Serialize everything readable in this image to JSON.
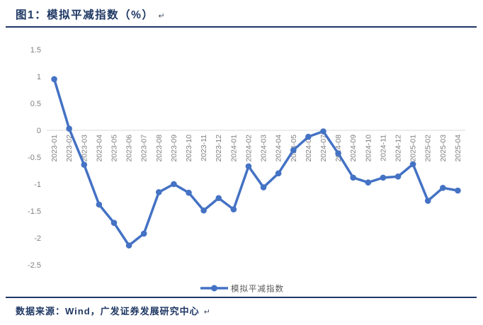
{
  "title": {
    "text": "图1：模拟平减指数（%）",
    "paragraph_mark": "↵"
  },
  "source": {
    "text": "数据来源：Wind，广发证券发展研究中心",
    "paragraph_mark": "↵"
  },
  "colors": {
    "accent_navy": "#1f3864",
    "series_blue": "#4472c4",
    "axis_text": "#7f7f7f",
    "legend_text": "#595959",
    "zero_gridline": "#d9d9d9",
    "background": "#ffffff"
  },
  "chart_data": {
    "type": "line",
    "title": "模拟平减指数（%）",
    "xlabel": "",
    "ylabel": "",
    "categories": [
      "2023-01",
      "2023-02",
      "2023-03",
      "2023-04",
      "2023-05",
      "2023-06",
      "2023-07",
      "2023-08",
      "2023-09",
      "2023-10",
      "2023-11",
      "2023-12",
      "2024-01",
      "2024-02",
      "2024-03",
      "2024-04",
      "2024-05",
      "2024-06",
      "2024-07",
      "2024-08",
      "2024-09",
      "2024-10",
      "2024-11",
      "2024-12",
      "2025-01",
      "2025-02",
      "2025-03",
      "2025-04"
    ],
    "series": [
      {
        "name": "模拟平减指数",
        "values": [
          0.95,
          0.03,
          -0.64,
          -1.38,
          -1.72,
          -2.14,
          -1.92,
          -1.15,
          -1.0,
          -1.16,
          -1.49,
          -1.26,
          -1.47,
          -0.67,
          -1.06,
          -0.8,
          -0.37,
          -0.12,
          -0.02,
          -0.43,
          -0.88,
          -0.97,
          -0.88,
          -0.86,
          -0.63,
          -1.31,
          -1.07,
          -1.12
        ]
      }
    ],
    "ylim": [
      -2.5,
      1.5
    ],
    "y_ticks": [
      "1.5",
      "1",
      "0.5",
      "0",
      "-0.5",
      "-1",
      "-1.5",
      "-2",
      "-2.5"
    ],
    "x_tick_rotation": -90,
    "grid": "zero-line-only",
    "legend_position": "bottom-center",
    "marker": "circle"
  }
}
